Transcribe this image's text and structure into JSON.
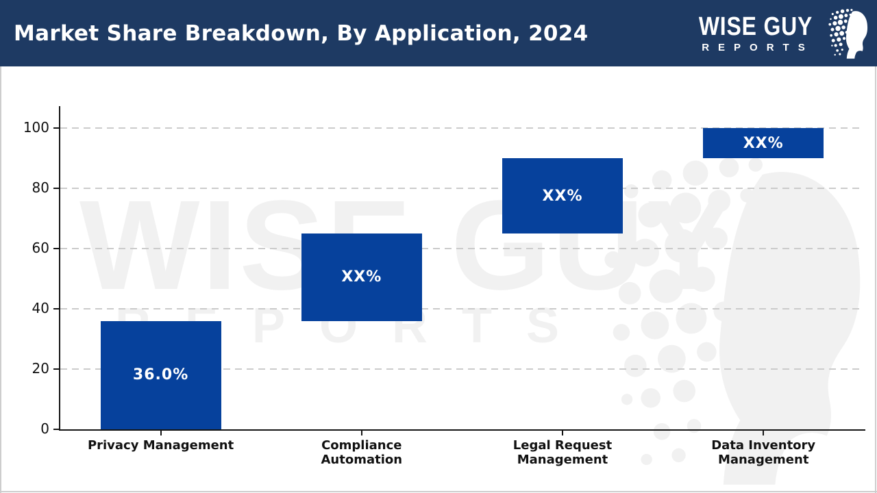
{
  "header": {
    "title": "Market Share Breakdown, By Application, 2024",
    "logo": {
      "wordmark": "WISE GUY",
      "subtitle": "REPORTS"
    }
  },
  "watermark": {
    "wordmark": "WISE GUY",
    "subtitle": "REPORTS"
  },
  "chart_data": {
    "type": "bar",
    "subtype": "floating-waterfall",
    "title": "Market Share Breakdown, By Application, 2024",
    "categories": [
      "Privacy Management",
      "Compliance Automation",
      "Legal Request Management",
      "Data Inventory Management"
    ],
    "category_lines": [
      [
        "Privacy Management"
      ],
      [
        "Compliance",
        "Automation"
      ],
      [
        "Legal Request",
        "Management"
      ],
      [
        "Data Inventory",
        "Management"
      ]
    ],
    "segments": [
      {
        "category": "Privacy Management",
        "start": 0,
        "end": 36,
        "label": "36.0%"
      },
      {
        "category": "Compliance Automation",
        "start": 36,
        "end": 65,
        "label": "XX%"
      },
      {
        "category": "Legal Request Management",
        "start": 65,
        "end": 90,
        "label": "XX%"
      },
      {
        "category": "Data Inventory Management",
        "start": 90,
        "end": 100,
        "label": "XX%"
      }
    ],
    "xlabel": "",
    "ylabel": "",
    "ylim": [
      0,
      100
    ],
    "yticks": [
      0,
      20,
      40,
      60,
      80,
      100
    ],
    "grid": "horizontal-dashed",
    "legend": "none",
    "bar_color": "#06419c"
  },
  "colors": {
    "header_bg": "#1e3a63",
    "bar": "#06419c",
    "bar_label": "#ffffff",
    "grid": "#cbcbcb",
    "axis": "#141414",
    "watermark": "#f1f1f1",
    "page_border": "#cdcdcd"
  }
}
